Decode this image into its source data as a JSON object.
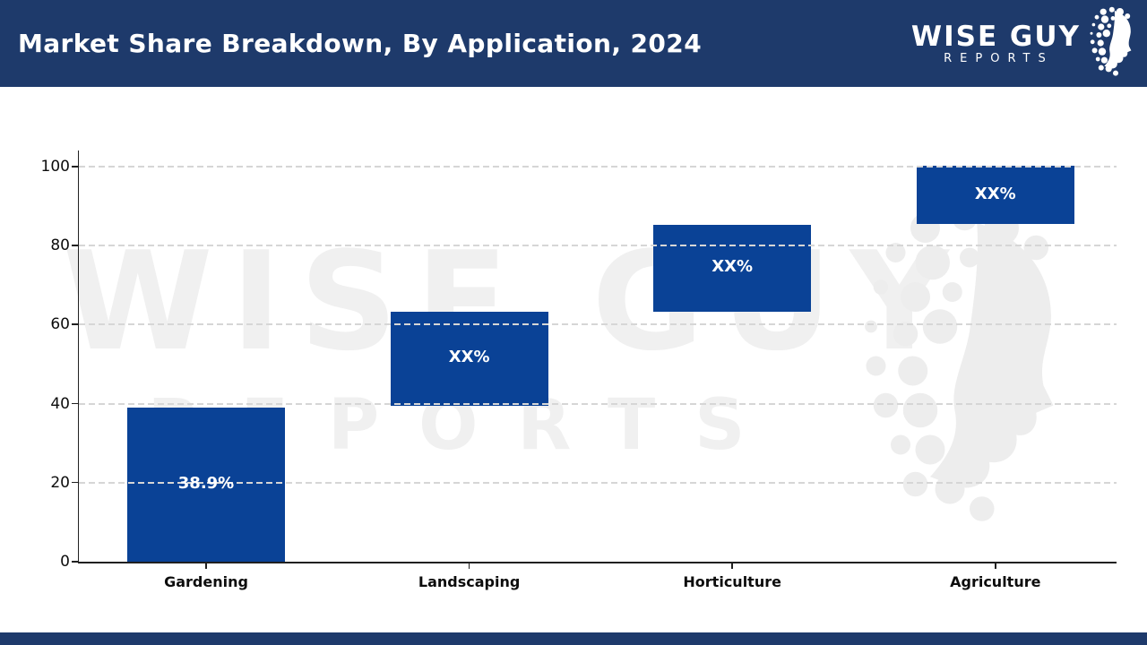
{
  "header": {
    "title": "Market Share Breakdown, By Application, 2024",
    "logo": {
      "line1": "WISE GUY",
      "line2": "REPORTS"
    }
  },
  "watermark": {
    "line1": "WISE GUY",
    "line2": "REPORTS"
  },
  "chart_data": {
    "type": "bar",
    "subtype": "waterfall",
    "title": "Market Share Breakdown, By Application, 2024",
    "xlabel": "",
    "ylabel": "",
    "categories": [
      "Gardening",
      "Landscaping",
      "Horticulture",
      "Agriculture"
    ],
    "bars": [
      {
        "category": "Gardening",
        "start": 0,
        "end": 38.9,
        "label": "38.9%"
      },
      {
        "category": "Landscaping",
        "start": 39.5,
        "end": 63.3,
        "label": "XX%"
      },
      {
        "category": "Horticulture",
        "start": 63.3,
        "end": 85.3,
        "label": "XX%"
      },
      {
        "category": "Agriculture",
        "start": 85.5,
        "end": 100.2,
        "label": "XX%"
      }
    ],
    "yticks": [
      0,
      20,
      40,
      60,
      80,
      100
    ],
    "ylim": [
      0,
      104
    ],
    "grid": {
      "horizontal": true,
      "style": "dashed",
      "drawn_above_bars": true
    },
    "legend": null
  },
  "colors": {
    "header_bg": "#1e3a6b",
    "bar": "#0a4296",
    "bar_label": "#ffffff",
    "grid": "#d6d6d6",
    "axis": "#202020",
    "watermark": "#f0f0f0"
  }
}
